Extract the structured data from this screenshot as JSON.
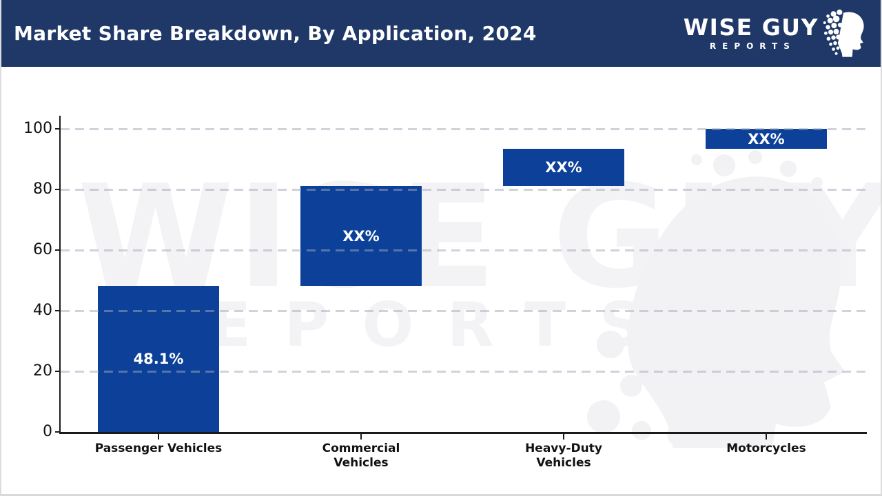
{
  "header": {
    "title": "Market Share Breakdown, By Application, 2024",
    "bg_color": "#1f3868",
    "logo": {
      "line1": "WISE GUY",
      "line2": "REPORTS",
      "head_icon": "dotted-head-profile"
    }
  },
  "watermark": {
    "line1": "WISE GUY",
    "line2": "REPORTS",
    "head_icon": "dotted-head-profile",
    "color": "#f3f3f6"
  },
  "chart_data": {
    "type": "bar",
    "subtype": "waterfall-stacked-breakdown",
    "title": "Market Share Breakdown, By Application, 2024",
    "categories": [
      "Passenger Vehicles",
      "Commercial Vehicles",
      "Heavy-Duty Vehicles",
      "Motorcycles"
    ],
    "category_lines": [
      [
        "Passenger Vehicles"
      ],
      [
        "Commercial",
        "Vehicles"
      ],
      [
        "Heavy-Duty",
        "Vehicles"
      ],
      [
        "Motorcycles"
      ]
    ],
    "segments": [
      {
        "category": "Passenger Vehicles",
        "start": 0,
        "end": 48.1,
        "label": "48.1%"
      },
      {
        "category": "Commercial Vehicles",
        "start": 48.1,
        "end": 81.1,
        "label": "XX%"
      },
      {
        "category": "Heavy-Duty Vehicles",
        "start": 81.1,
        "end": 93.4,
        "label": "XX%"
      },
      {
        "category": "Motorcycles",
        "start": 93.4,
        "end": 100,
        "label": "XX%"
      }
    ],
    "xlabel": "",
    "ylabel": "",
    "ylim": [
      0,
      100
    ],
    "yticks": [
      0,
      20,
      40,
      60,
      80,
      100
    ],
    "grid": "horizontal-dashed",
    "gridline_color": "#d9d9d9",
    "bar_color": "#0d4199",
    "bar_label_color": "#ffffff",
    "axis_color": "#1a1a1a",
    "legend": "none"
  }
}
